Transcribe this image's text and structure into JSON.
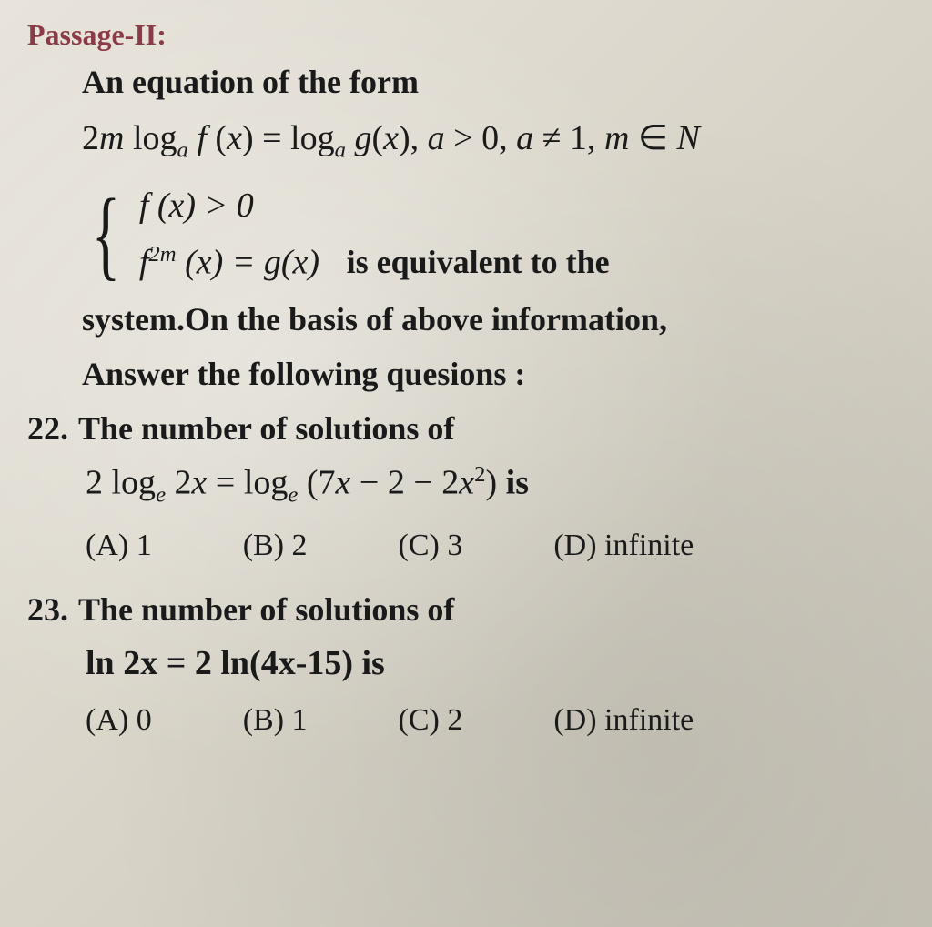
{
  "passage": {
    "header": "Passage-II:",
    "intro": "An equation of the form",
    "equation": "2m logₐ f (x) = logₐ g(x), a > 0, a ≠ 1, m ∈ N",
    "brace_line1": "f (x) > 0",
    "brace_line2_lhs": "f",
    "brace_line2_exp": "2m",
    "brace_line2_rest": " (x) = g(x)",
    "brace_aside": "is equivalent to the",
    "system_line1": "system.On the basis of above information,",
    "system_line2": "Answer the following quesions :"
  },
  "q22": {
    "num": "22.",
    "text": "The number of solutions of",
    "equation_prefix": "2 log",
    "equation_sub": "e",
    "equation_mid": " 2x = log",
    "equation_sub2": "e",
    "equation_paren": " (7x − 2 − 2x",
    "equation_exp": "2",
    "equation_suffix": ") is",
    "options": {
      "a": "(A) 1",
      "b": "(B) 2",
      "c": "(C) 3",
      "d": "(D) infinite"
    }
  },
  "q23": {
    "num": "23.",
    "text": "The number of solutions of",
    "equation": "ln 2x = 2 ln(4x-15) is",
    "options": {
      "a": "(A) 0",
      "b": "(B) 1",
      "c": "(C) 2",
      "d": "(D) infinite"
    }
  },
  "colors": {
    "header": "#8b3a4a",
    "text": "#1a1a1a",
    "background_start": "#e8e4dc",
    "background_end": "#c8c4b8"
  },
  "typography": {
    "header_fontsize": 32,
    "body_fontsize": 36,
    "equation_fontsize": 38,
    "options_fontsize": 34,
    "font_family": "Times New Roman"
  }
}
